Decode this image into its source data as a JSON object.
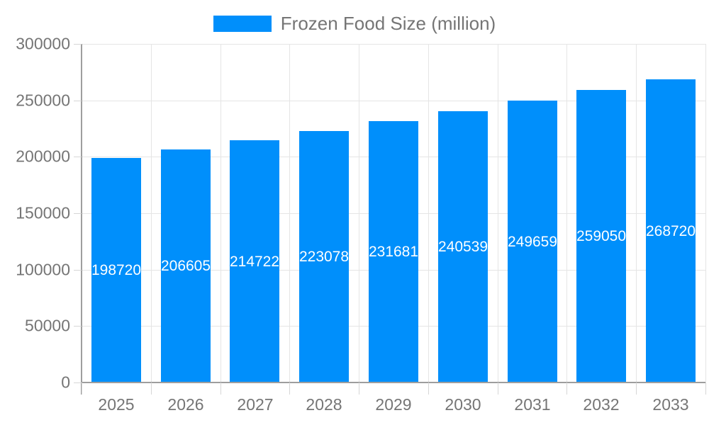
{
  "chart_data": {
    "type": "bar",
    "title": "",
    "legend": {
      "label": "Frozen Food Size (million)",
      "position": "top"
    },
    "categories": [
      "2025",
      "2026",
      "2027",
      "2028",
      "2029",
      "2030",
      "2031",
      "2032",
      "2033"
    ],
    "series": [
      {
        "name": "Frozen Food Size (million)",
        "values": [
          198720,
          206605,
          214722,
          223078,
          231681,
          240539,
          249659,
          259050,
          268720
        ]
      }
    ],
    "bar_labels": [
      "198720",
      "206605",
      "214722",
      "223078",
      "231681",
      "240539",
      "249659",
      "259050",
      "268720"
    ],
    "xlabel": "",
    "ylabel": "",
    "ylim": [
      0,
      300000
    ],
    "ytick_step": 50000,
    "ytick_labels": [
      "0",
      "50000",
      "100000",
      "150000",
      "200000",
      "250000",
      "300000"
    ],
    "grid": true,
    "colors": {
      "bar": "#008FFB",
      "grid": "#E5E5E5",
      "axis": "#9E9E9E",
      "tick": "#D6D6D6",
      "axis_label": "#757575",
      "bar_label": "#FFFFFF",
      "background": "#FFFFFF"
    }
  }
}
